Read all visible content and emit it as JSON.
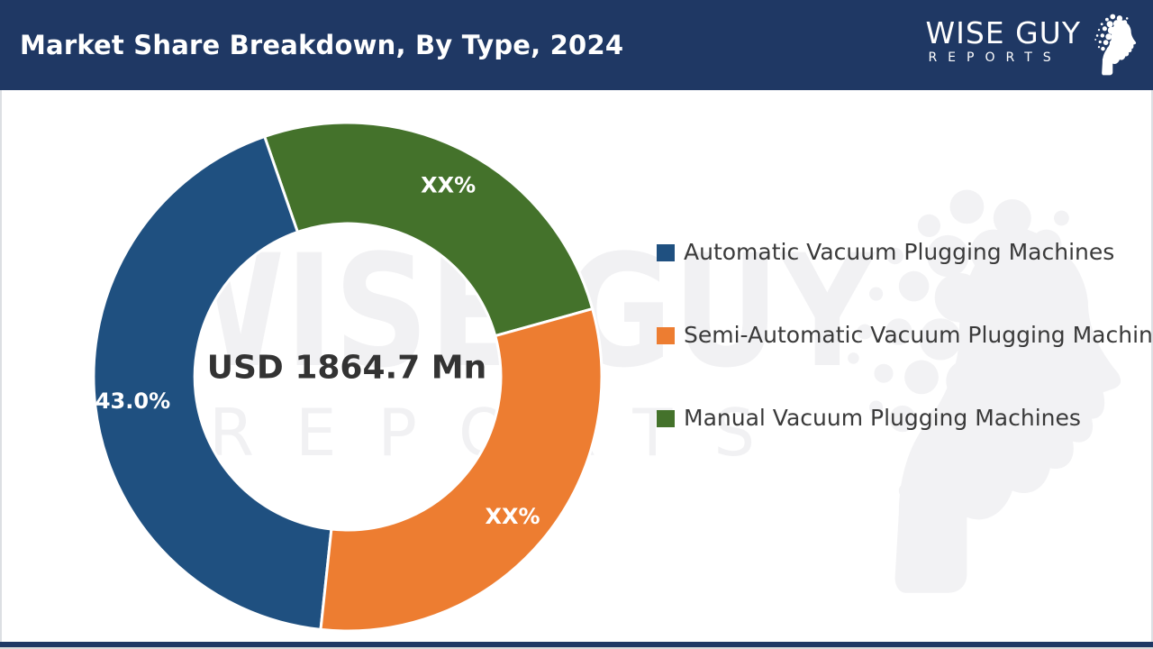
{
  "header": {
    "title": "Market Share Breakdown, By Type, 2024",
    "logo": {
      "line1": "WISE GUY",
      "line2": "REPORTS",
      "icon": "wiseguy-head-icon"
    }
  },
  "watermark": {
    "line1": "WISE GUY",
    "line2": "REPORTS",
    "icon": "wiseguy-head-icon"
  },
  "chart_data": {
    "type": "pie",
    "subtype": "donut",
    "title": "Market Share Breakdown, By Type, 2024",
    "center_label": "USD 1864.7 Mn",
    "unit": "percent of market share",
    "hole_ratio": 0.6,
    "start_angle_deg": 15.5,
    "direction": "counterclockwise",
    "draw_order_ccw": [
      "Manual Vacuum Plugging Machines",
      "Automatic Vacuum Plugging Machines",
      "Semi-Automatic Vacuum Plugging Machines"
    ],
    "slices": [
      {
        "name": "Automatic Vacuum Plugging Machines",
        "value_pct": 43.0,
        "label": "43.0%",
        "color": "#1F5080"
      },
      {
        "name": "Semi-Automatic Vacuum Plugging Machines",
        "value_pct": 31.0,
        "label": "XX%",
        "color": "#ED7D31"
      },
      {
        "name": "Manual Vacuum Plugging Machines",
        "value_pct": 26.0,
        "label": "XX%",
        "color": "#44722B"
      }
    ],
    "legend_position": "right",
    "separator_color": "#FFFFFF"
  },
  "colors": {
    "header_bg": "#1F3864",
    "footer_bg": "#1F3864",
    "title_text": "#FFFFFF",
    "center_text": "#333333",
    "legend_text": "#3A3A3A",
    "watermark": "#F1F1F3"
  }
}
